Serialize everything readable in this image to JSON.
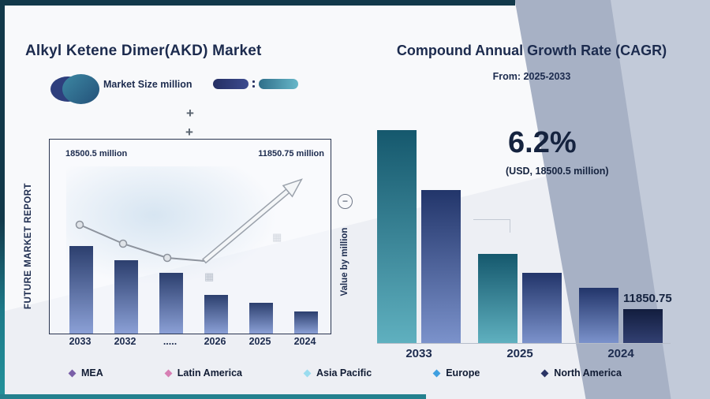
{
  "icons": {
    "plus": "+",
    "minus": "−",
    "grid": "▦"
  },
  "colors": {
    "accent_teal": "#1f7086",
    "accent_navy": "#2b3f7e",
    "title_navy": "#1c2b4e",
    "band_gray": "#a7b1c5",
    "edge_teal": "#23808e",
    "edge_dark": "#12394a"
  },
  "bottom_legend": [
    {
      "label": "MEA",
      "color": "#7a5fa8"
    },
    {
      "label": "Latin America",
      "color": "#d77fb4"
    },
    {
      "label": "Asia Pacific",
      "color": "#9adcef"
    },
    {
      "label": "Europe",
      "color": "#3f9fe0"
    },
    {
      "label": "North America",
      "color": "#2b3566"
    }
  ],
  "chart_data": [
    {
      "type": "bar",
      "title": "Alkyl Ketene Dimer(AKD) Market",
      "legend": "Market Size million",
      "categories": [
        "2033",
        "2032",
        ".....",
        "2026",
        "2025",
        "2024"
      ],
      "values_relative_pct": [
        48,
        40,
        33,
        21,
        17,
        12
      ],
      "annotations": [
        "18500.5 million",
        "11850.75 million"
      ],
      "ylabel": "FUTURE MARKET REPORT",
      "note": "Bar heights decline from 2033 to 2024; overlaid declining marker line ends in a large rising outline arrow. Exact per-bar values are not labeled; heights are percentages of plot height."
    },
    {
      "type": "bar",
      "title": "Compound Annual Growth Rate (CAGR)",
      "subtitle": "From: 2025-2033",
      "cagr": "6.2%",
      "cagr_basis": "(USD, 18500.5 million)",
      "ylabel": "Value by million",
      "categories": [
        "2033",
        "2025",
        "2024"
      ],
      "groups": [
        {
          "category": "2033",
          "bars": [
            {
              "palette": "teal",
              "height_pct": 100
            },
            {
              "palette": "navy",
              "height_pct": 72
            }
          ]
        },
        {
          "category": "2025",
          "bars": [
            {
              "palette": "teal",
              "height_pct": 42
            },
            {
              "palette": "navy",
              "height_pct": 33
            }
          ]
        },
        {
          "category": "2024",
          "bars": [
            {
              "palette": "navy",
              "height_pct": 26
            },
            {
              "palette": "darknavy",
              "height_pct": 16
            }
          ]
        }
      ],
      "annotation": "11850.75",
      "note": "Grouped bars, two bars per year; only the 2024 value (11850.75) is labeled. Heights are percentages of plot height."
    }
  ]
}
